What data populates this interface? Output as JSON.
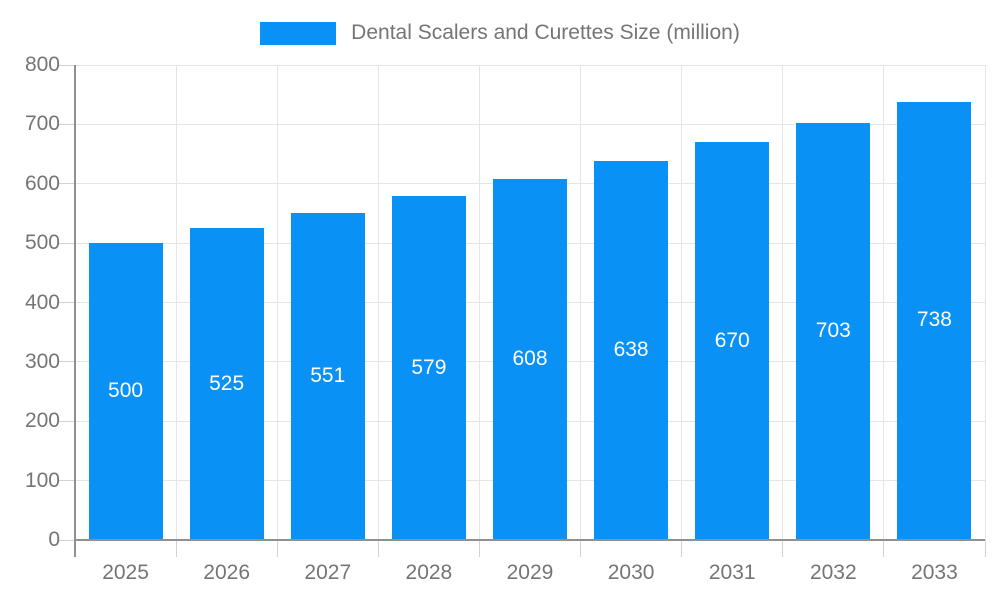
{
  "chart_data": {
    "type": "bar",
    "title": "Dental Scalers and Curettes Size (million)",
    "categories": [
      "2025",
      "2026",
      "2027",
      "2028",
      "2029",
      "2030",
      "2031",
      "2032",
      "2033"
    ],
    "values": [
      500,
      525,
      551,
      579,
      608,
      638,
      670,
      703,
      738
    ],
    "xlabel": "",
    "ylabel": "",
    "ylim": [
      0,
      800
    ],
    "yticks": [
      0,
      100,
      200,
      300,
      400,
      500,
      600,
      700,
      800
    ],
    "grid": true,
    "legend_position": "top",
    "bar_label_position": "inside-center"
  },
  "colors": {
    "bar": "#0a91f5",
    "grid_line": "#e5e5e5",
    "axis_line": "#909090",
    "tick_mark": "#d2d2d2",
    "axis_text": "#757575",
    "bar_label_text": "#ffffff",
    "background": "#ffffff"
  }
}
